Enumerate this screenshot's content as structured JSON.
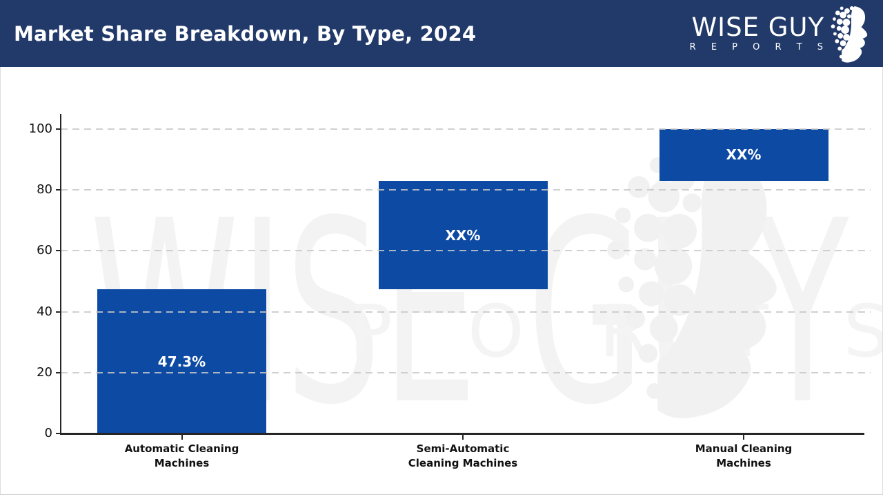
{
  "header": {
    "title": "Market Share Breakdown, By Type, 2024",
    "logo": {
      "line1": "WISE GUY",
      "line2": "R E P O R T S"
    }
  },
  "watermark": {
    "line1": "WISE GUY",
    "line2": "R E P O R T S"
  },
  "colors": {
    "header_bg": "#223a6a",
    "bar_fill": "#0d4aa3",
    "bar_label": "#ffffff",
    "grid": "#d9d9d9",
    "axis": "#262626",
    "watermark": "#f3f3f3"
  },
  "chart_data": {
    "type": "bar",
    "subtype": "floating-waterfall",
    "title": "Market Share Breakdown, By Type, 2024",
    "categories": [
      [
        "Automatic Cleaning",
        "Machines"
      ],
      [
        "Semi-Automatic",
        "Cleaning Machines"
      ],
      [
        "Manual Cleaning",
        "Machines"
      ]
    ],
    "segments": [
      {
        "start": 0,
        "end": 47.3,
        "label": "47.3%"
      },
      {
        "start": 47.3,
        "end": 83,
        "label": "XX%"
      },
      {
        "start": 83,
        "end": 100,
        "label": "XX%"
      }
    ],
    "ylabel": "",
    "xlabel": "",
    "ylim": [
      0,
      105
    ],
    "yticks": [
      0,
      20,
      40,
      60,
      80,
      100
    ],
    "grid": true,
    "grid_style": "dashed",
    "legend": null
  }
}
